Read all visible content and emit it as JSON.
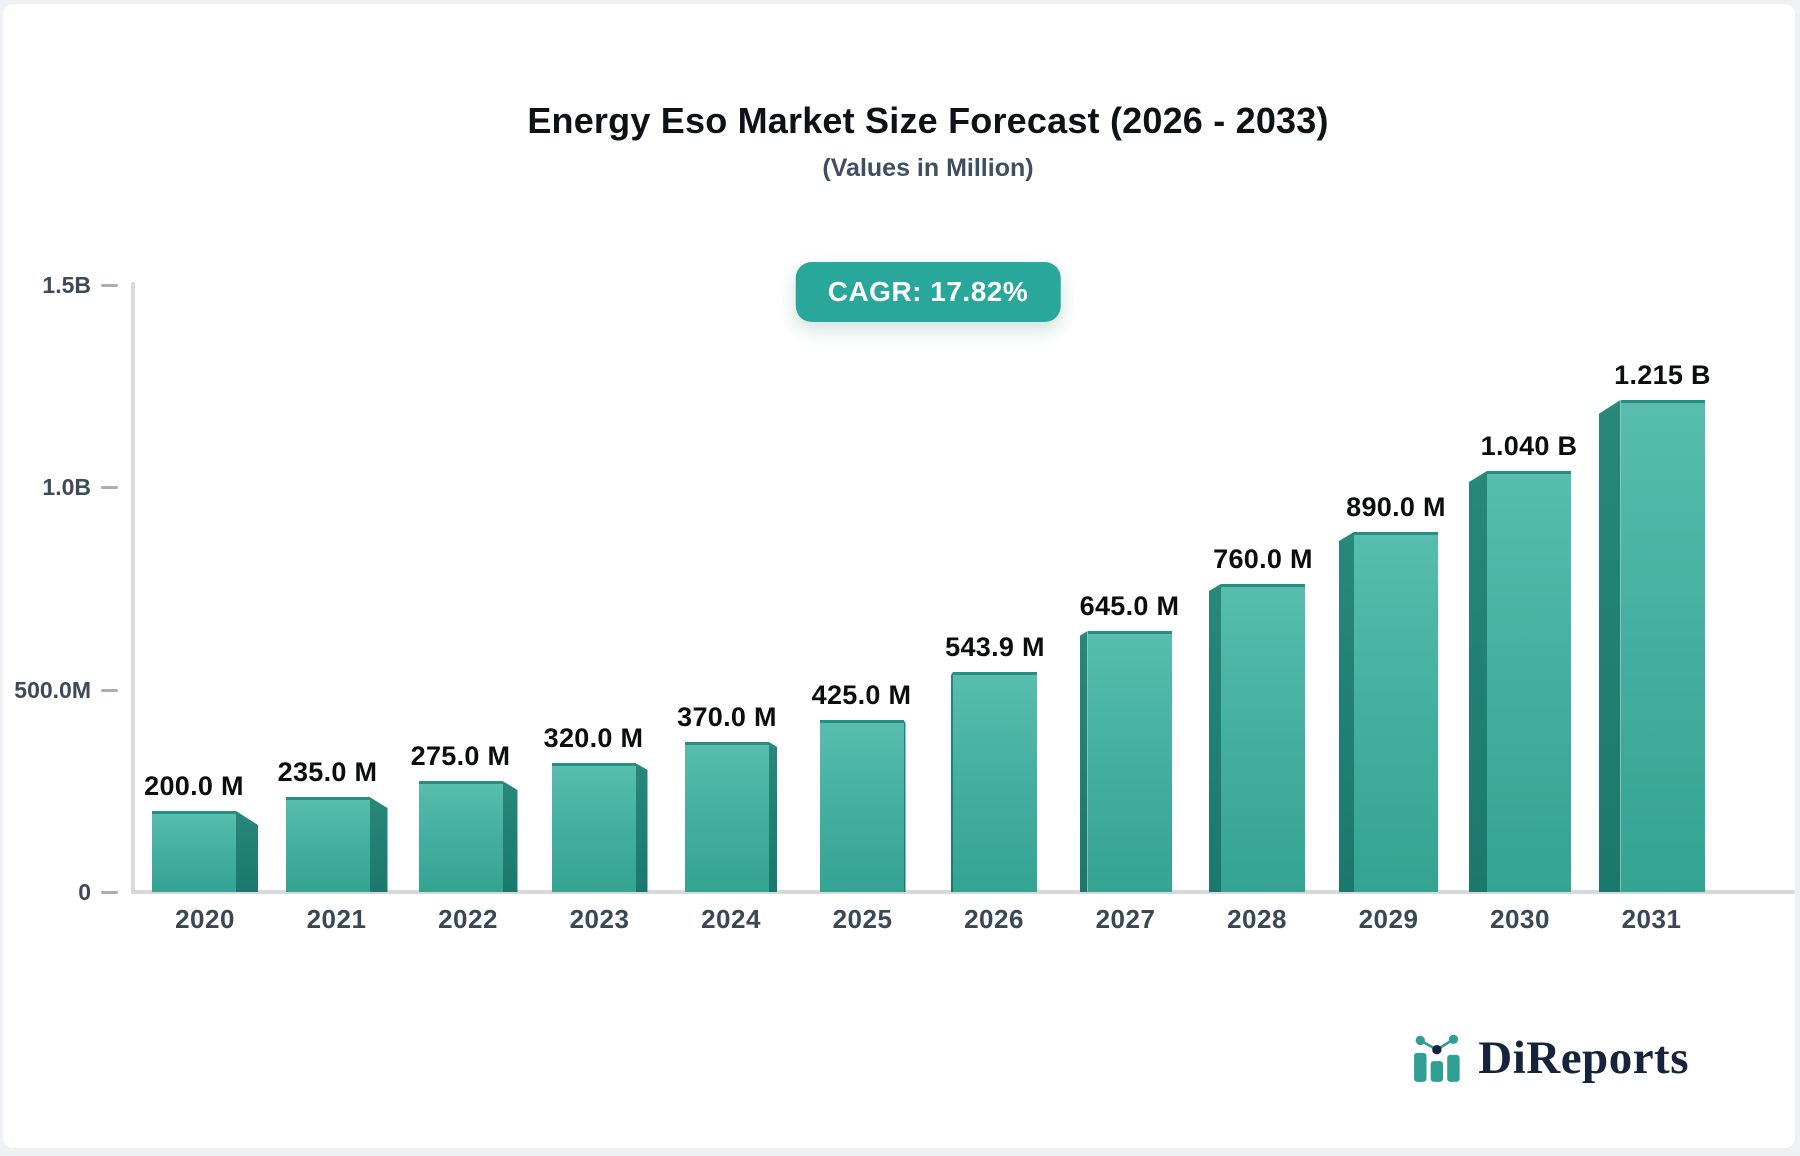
{
  "header": {
    "title": "Energy Eso Market Size Forecast (2026 - 2033)",
    "subtitle": "(Values in Million)",
    "cagr_label": "CAGR: 17.82%"
  },
  "logo": {
    "text": "DiReports"
  },
  "chart_data": {
    "type": "bar",
    "title": "Energy Eso Market Size Forecast (2026 - 2033)",
    "subtitle": "(Values in Million)",
    "cagr_percent": 17.82,
    "categories": [
      "2020",
      "2021",
      "2022",
      "2023",
      "2024",
      "2025",
      "2026",
      "2027",
      "2028",
      "2029",
      "2030",
      "2031"
    ],
    "values_millions": [
      200.0,
      235.0,
      275.0,
      320.0,
      370.0,
      425.0,
      543.9,
      645.0,
      760.0,
      890.0,
      1040.0,
      1215.0
    ],
    "bar_labels": [
      "200.0 M",
      "235.0 M",
      "275.0 M",
      "320.0 M",
      "370.0 M",
      "425.0 M",
      "543.9 M",
      "645.0 M",
      "760.0 M",
      "890.0 M",
      "1.040 B",
      "1.215 B"
    ],
    "xlabel": "",
    "ylabel": "",
    "ylim": [
      0,
      1500
    ],
    "y_ticks": [
      {
        "label": "1.5B",
        "value": 1500
      },
      {
        "label": "1.0B",
        "value": 1000
      },
      {
        "label": "500.0M",
        "value": 500
      },
      {
        "label": "0",
        "value": 0
      }
    ],
    "grid": false,
    "legend": false,
    "colors": {
      "bar_face_top": "#58bdae",
      "bar_face_bottom": "#34a392",
      "bar_side_top": "#27887b",
      "bar_side_bottom": "#1b786c",
      "bar_top_edge": "#278e80",
      "badge_background": "#2aa79b",
      "badge_text": "#ffffff",
      "axis_line": "#d8dade",
      "tick_text": "#3e4a57",
      "year_text": "#3a4754",
      "logo_teal": "#2f9f93",
      "logo_navy": "#15233d"
    }
  }
}
